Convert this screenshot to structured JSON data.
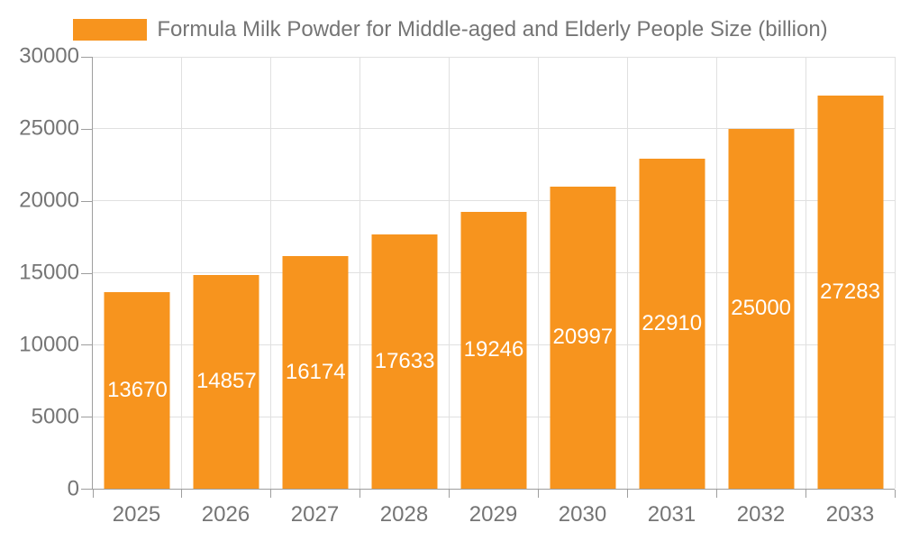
{
  "legend": {
    "label": "Formula Milk Powder for Middle-aged and Elderly People Size (billion)"
  },
  "chart_data": {
    "type": "bar",
    "title": "",
    "xlabel": "",
    "ylabel": "",
    "categories": [
      "2025",
      "2026",
      "2027",
      "2028",
      "2029",
      "2030",
      "2031",
      "2032",
      "2033"
    ],
    "values": [
      13670,
      14857,
      16174,
      17633,
      19246,
      20997,
      22910,
      25000,
      27283
    ],
    "series_name": "Formula Milk Powder for Middle-aged and Elderly People Size (billion)",
    "value_labels_visible": true,
    "value_label_position": "inside-center",
    "ylim": [
      0,
      30000
    ],
    "yticks": [
      0,
      5000,
      10000,
      15000,
      20000,
      25000,
      30000
    ],
    "grid": true,
    "legend_position": "top-center",
    "colors": {
      "bar": "#f7941e",
      "bar_label": "#ffffff",
      "axis_text": "#757575",
      "axis_line": "#9e9e9e",
      "grid": "#e0e0e0",
      "background": "#ffffff"
    }
  }
}
